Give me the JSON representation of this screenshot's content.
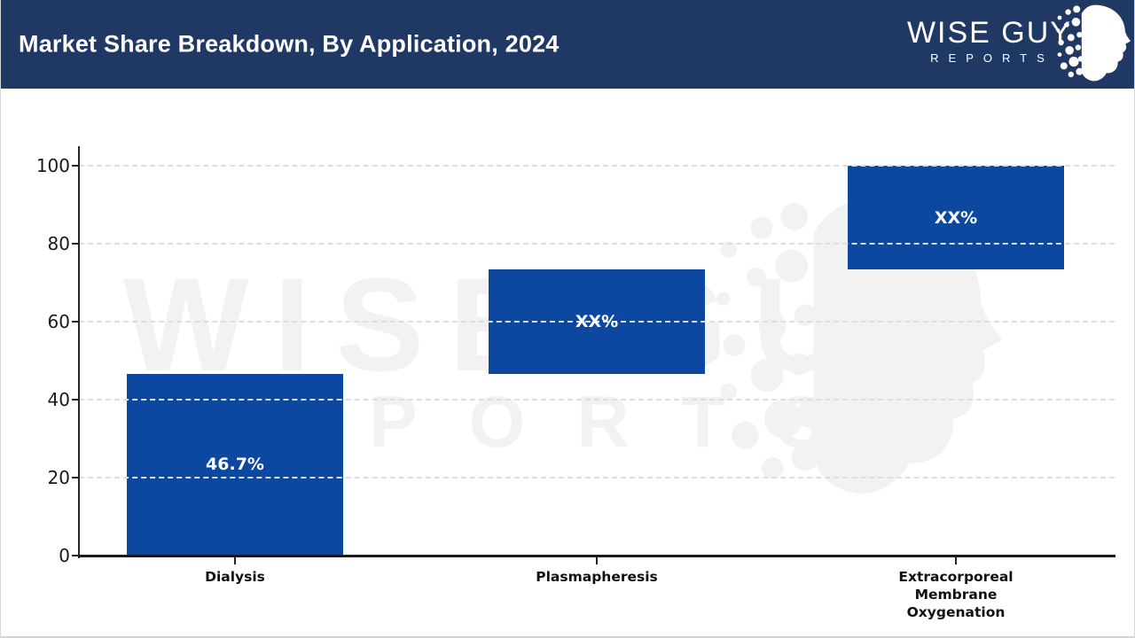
{
  "header": {
    "title": "Market Share Breakdown, By Application, 2024",
    "bg_color": "#203864",
    "logo": {
      "line1": "WISE GUY",
      "line2": "REPORTS"
    }
  },
  "watermark": {
    "line1": "WISE GUY",
    "line2": "REPORTS"
  },
  "chart_data": {
    "type": "bar",
    "subtype": "waterfall",
    "title": "Market Share Breakdown, By Application, 2024",
    "categories": [
      "Dialysis",
      "Plasmapheresis",
      "Extracorporeal Membrane Oxygenation"
    ],
    "segments": [
      {
        "category": "Dialysis",
        "start": 0,
        "end": 46.7,
        "label": "46.7%"
      },
      {
        "category": "Plasmapheresis",
        "start": 46.7,
        "end": 73.3,
        "label": "XX%"
      },
      {
        "category": "Extracorporeal Membrane Oxygenation",
        "start": 73.3,
        "end": 100,
        "label": "XX%"
      }
    ],
    "yticks": [
      0,
      20,
      40,
      60,
      80,
      100
    ],
    "ylim": [
      0,
      100
    ],
    "xlabel": "",
    "ylabel": "",
    "grid": "horizontal-dashed-over-bars",
    "bar_color": "#0d48a0",
    "bar_label_color": "#ffffff",
    "axis_color": "#1a1a1a"
  }
}
